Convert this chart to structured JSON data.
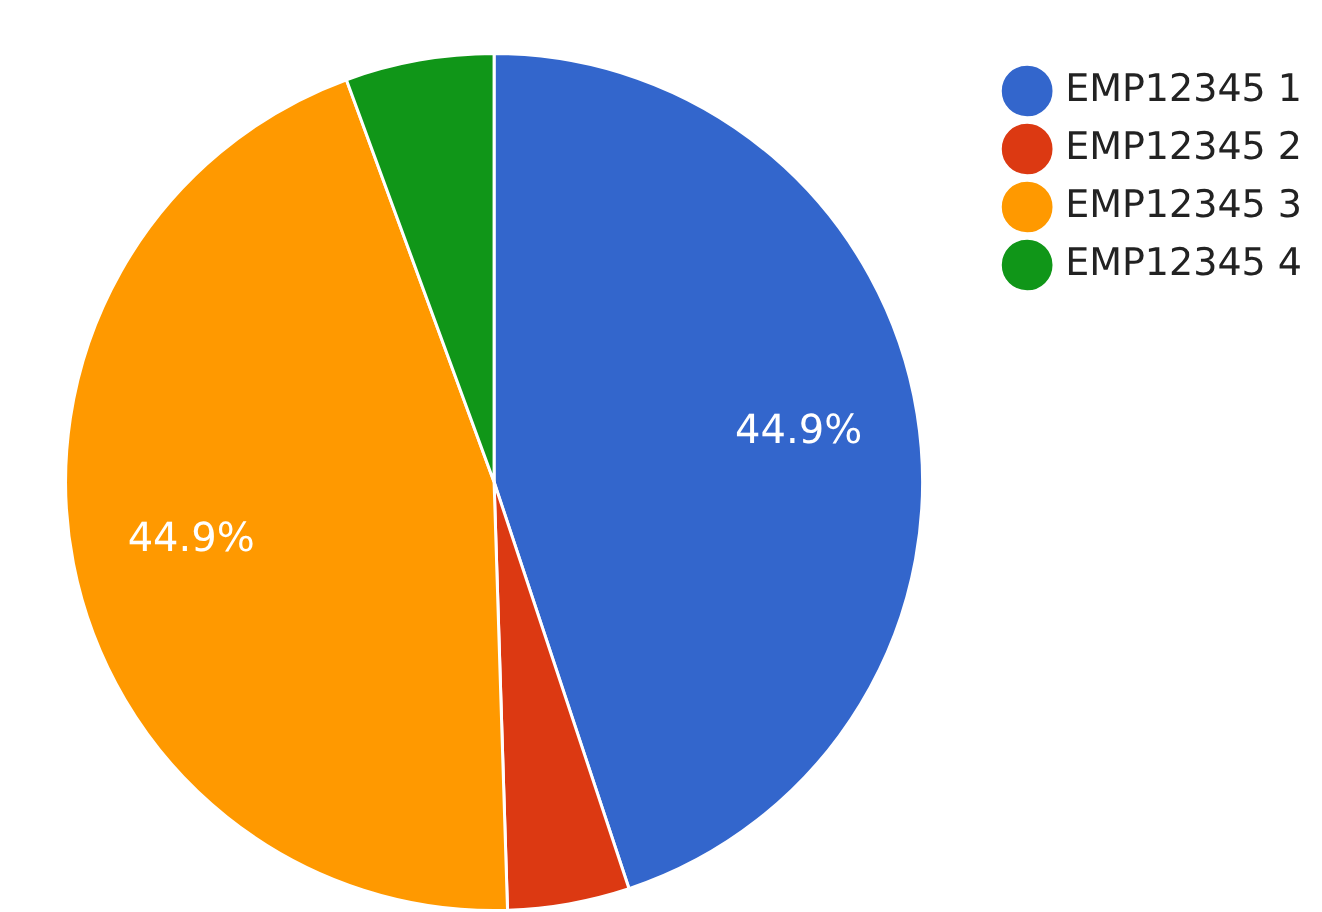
{
  "chart_data": {
    "type": "pie",
    "categories": [
      "EMP12345 1",
      "EMP12345 2",
      "EMP12345 3",
      "EMP12345 4"
    ],
    "values": [
      44.9,
      4.6,
      44.9,
      5.6
    ],
    "colors": [
      "#3366cc",
      "#dc3912",
      "#ff9900",
      "#109618"
    ],
    "value_labels": [
      "44.9%",
      null,
      "44.9%",
      null
    ],
    "legend": "top right"
  }
}
